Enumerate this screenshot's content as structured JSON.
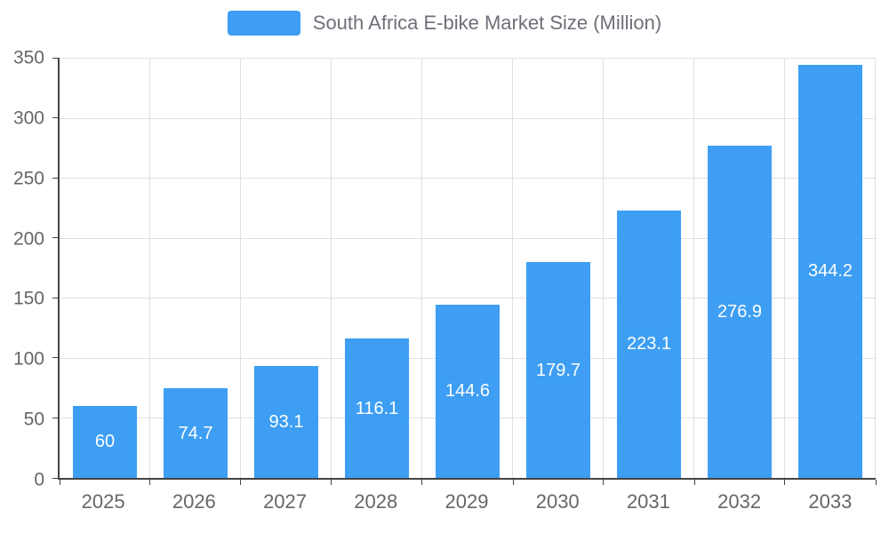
{
  "chart_data": {
    "type": "bar",
    "title": "South Africa E-bike Market Size (Million)",
    "categories": [
      "2025",
      "2026",
      "2027",
      "2028",
      "2029",
      "2030",
      "2031",
      "2032",
      "2033"
    ],
    "values": [
      60,
      74.7,
      93.1,
      116.1,
      144.6,
      179.7,
      223.1,
      276.9,
      344.2
    ],
    "value_labels": [
      "60",
      "74.7",
      "93.1",
      "116.1",
      "144.6",
      "179.7",
      "223.1",
      "276.9",
      "344.2"
    ],
    "xlabel": "",
    "ylabel": "",
    "ylim": [
      0,
      350
    ],
    "yticks": [
      "0",
      "50",
      "100",
      "150",
      "200",
      "250",
      "300",
      "350"
    ],
    "grid": true,
    "legend_position": "top",
    "colors": {
      "bar": "#3d9ef3",
      "bar_value_label": "#ffffff",
      "axis_text": "#666666",
      "legend_text": "#6e7079",
      "grid_line": "#e0e0e0",
      "axis_line": "#444444",
      "background": "#ffffff"
    }
  }
}
